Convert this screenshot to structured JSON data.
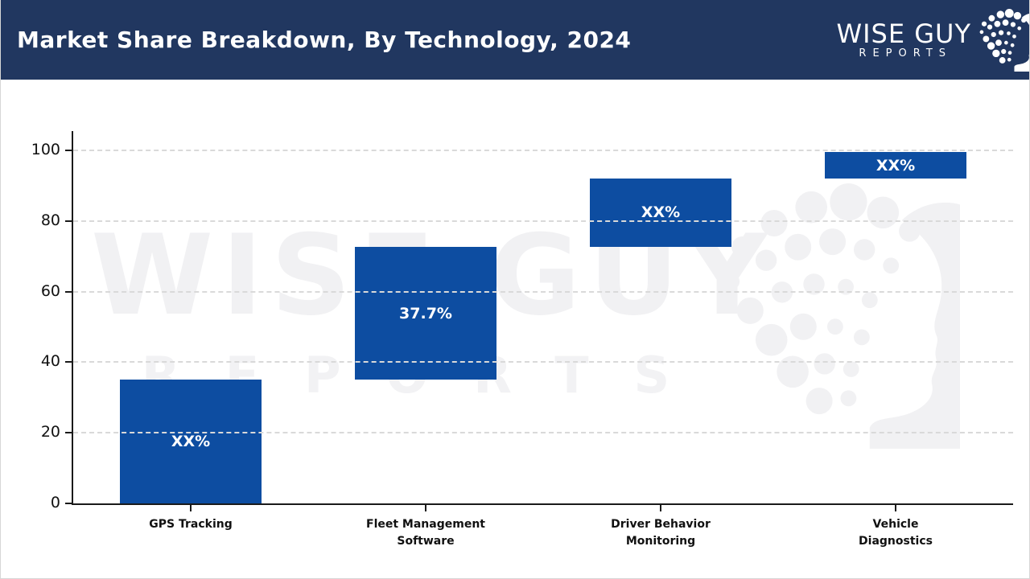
{
  "header": {
    "title": "Market Share Breakdown, By Technology, 2024",
    "logo_line1": "WISE GUY",
    "logo_line2": "REPORTS",
    "bg_color": "#213760"
  },
  "watermark": {
    "line1": "WISE GUY",
    "line2": "REPORTS"
  },
  "chart_data": {
    "type": "bar",
    "variant": "floating-waterfall",
    "title": "Market Share Breakdown, By Technology, 2024",
    "categories": [
      "GPS Tracking",
      "Fleet Management Software",
      "Driver Behavior Monitoring",
      "Vehicle Diagnostics"
    ],
    "category_lines": [
      [
        "GPS Tracking"
      ],
      [
        "Fleet Management",
        "Software"
      ],
      [
        "Driver Behavior",
        "Monitoring"
      ],
      [
        "Vehicle",
        "Diagnostics"
      ]
    ],
    "series": [
      {
        "name": "Market share (%)",
        "starts": [
          0,
          35,
          72.7,
          92
        ],
        "ends": [
          35,
          72.7,
          92,
          99.5
        ]
      }
    ],
    "bar_labels": [
      "XX%",
      "37.7%",
      "XX%",
      "XX%"
    ],
    "ylim": [
      0,
      100
    ],
    "yticks": [
      0,
      20,
      40,
      60,
      80,
      100
    ],
    "ytick_labels": [
      "0",
      "20",
      "40",
      "60",
      "80",
      "100"
    ],
    "xlabel": "",
    "ylabel": "",
    "grid": "horizontal dashed, drawn over bars",
    "legend": "none",
    "colors": {
      "bar": "#0D4DA1",
      "grid": "#D9D9D9",
      "axis": "#1A1A1A",
      "bar_label_text": "#FFFFFF",
      "header_bg": "#213760",
      "watermark": "#F1F1F3"
    }
  }
}
